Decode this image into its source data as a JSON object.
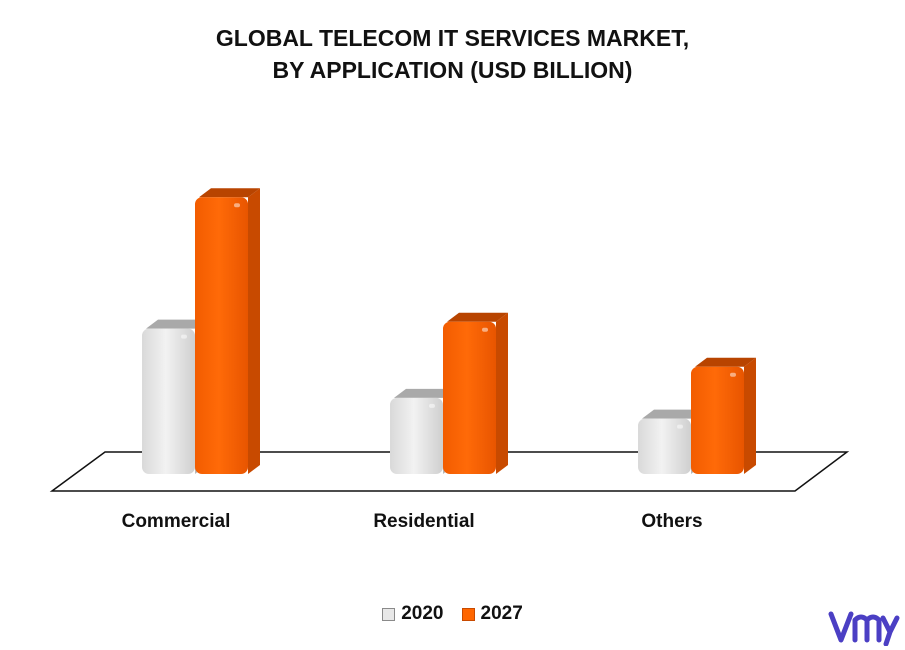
{
  "chart_data": {
    "type": "bar",
    "title_lines": [
      "GLOBAL TELECOM IT SERVICES MARKET,",
      "BY APPLICATION (USD BILLION)"
    ],
    "categories": [
      "Commercial",
      "Residential",
      "Others"
    ],
    "series": [
      {
        "name": "2020",
        "values": [
          4.2,
          2.2,
          1.6
        ],
        "color": "#e8e8e8"
      },
      {
        "name": "2027",
        "values": [
          8.0,
          4.4,
          3.1
        ],
        "color": "#ff6600"
      }
    ],
    "ylim": [
      0,
      8.5
    ],
    "xlabel": "",
    "ylabel": "",
    "grid": false,
    "legend_position": "bottom-center"
  },
  "legend": {
    "items": [
      {
        "label": "2020",
        "color": "#e8e8e8"
      },
      {
        "label": "2027",
        "color": "#ff6600"
      }
    ]
  },
  "brand": {
    "logo_icon": "vmr-logo-icon",
    "color": "#4b3fc4"
  }
}
